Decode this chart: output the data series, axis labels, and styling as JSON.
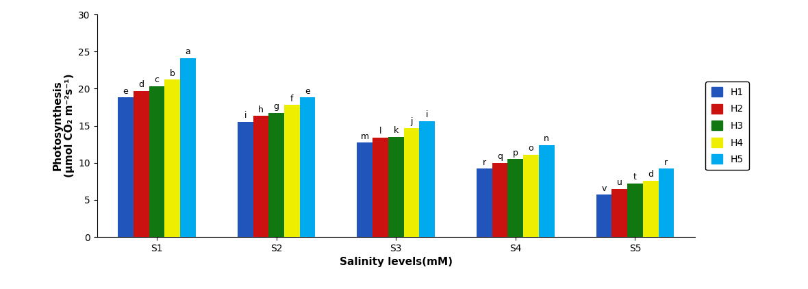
{
  "categories": [
    "S1",
    "S2",
    "S3",
    "S4",
    "S5"
  ],
  "series": {
    "H1": [
      18.8,
      15.5,
      12.7,
      9.2,
      5.7
    ],
    "H2": [
      19.7,
      16.3,
      13.4,
      10.0,
      6.5
    ],
    "H3": [
      20.3,
      16.7,
      13.5,
      10.5,
      7.2
    ],
    "H4": [
      21.2,
      17.8,
      14.7,
      11.1,
      7.6
    ],
    "H5": [
      24.1,
      18.8,
      15.6,
      12.4,
      9.2
    ]
  },
  "bar_colors": {
    "H1": "#2255BB",
    "H2": "#CC1111",
    "H3": "#117711",
    "H4": "#EEEE00",
    "H5": "#00AAEE"
  },
  "annotations": {
    "S1": [
      "e",
      "d",
      "c",
      "b",
      "a"
    ],
    "S2": [
      "i",
      "h",
      "g",
      "f",
      "e"
    ],
    "S3": [
      "m",
      "l",
      "k",
      "j",
      "i"
    ],
    "S4": [
      "r",
      "q",
      "p",
      "o",
      "n"
    ],
    "S5": [
      "v",
      "u",
      "t",
      "d",
      "r"
    ]
  },
  "ylabel_line1": "Photosynthesis",
  "ylabel_line2": "(μmol CO₂ m⁻²s⁻¹)",
  "xlabel": "Salinity levels(mM)",
  "ylim": [
    0,
    30
  ],
  "yticks": [
    0,
    5,
    10,
    15,
    20,
    25,
    30
  ],
  "legend_labels": [
    "H1",
    "H2",
    "H3",
    "H4",
    "H5"
  ],
  "bar_width": 0.13,
  "axis_fontsize": 11,
  "tick_fontsize": 10,
  "legend_fontsize": 10,
  "annotation_fontsize": 9,
  "background_color": "#ffffff"
}
